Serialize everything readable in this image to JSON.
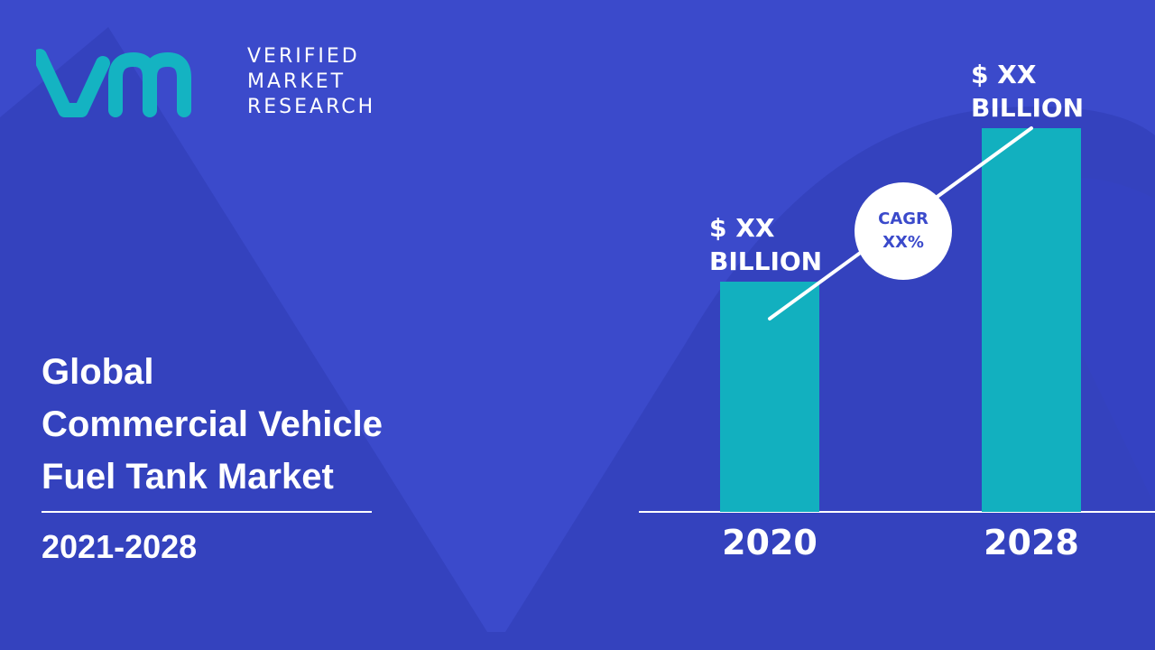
{
  "brand": {
    "logo_mark": "vmr",
    "logo_words": [
      "VERIFIED",
      "MARKET",
      "RESEARCH"
    ],
    "mark_color": "#14b3c2"
  },
  "colors": {
    "background": "#3b4acb",
    "background_shape": "#2f3cb4",
    "bar": "#12b0bf",
    "text": "#ffffff",
    "cagr_text": "#3b4acb"
  },
  "title_lines": [
    "Global",
    "Commercial Vehicle",
    "Fuel Tank Market"
  ],
  "period": "2021-2028",
  "chart_data": {
    "type": "bar",
    "categories": [
      "2020",
      "2028"
    ],
    "values": [
      0.6,
      1.0
    ],
    "ylim": [
      0,
      1.0
    ],
    "value_labels": [
      [
        "$ XX",
        "BILLION"
      ],
      [
        "$ XX",
        "BILLION"
      ]
    ],
    "annotation": {
      "type": "growth-arrow",
      "text": [
        "CAGR",
        "XX%"
      ]
    },
    "grid": false,
    "legend": "none"
  }
}
